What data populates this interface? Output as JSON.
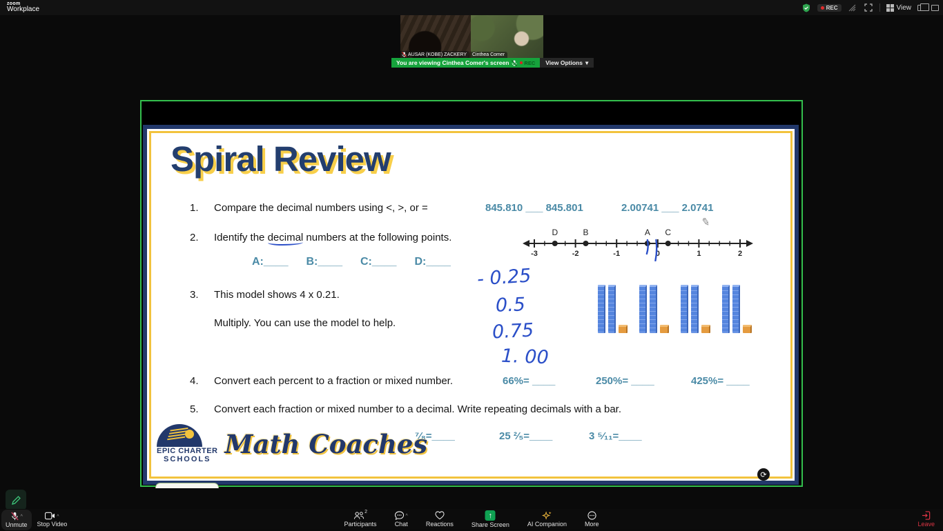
{
  "app": {
    "brand_top": "zoom",
    "brand_bottom": "Workplace",
    "rec_label": "REC",
    "view_label": "View"
  },
  "participants": [
    {
      "name": "AUSAR (KOBE) ZACKERY",
      "muted": true
    },
    {
      "name": "Cinthea Comer",
      "muted": false
    }
  ],
  "banner": {
    "viewing_text": "You are viewing  Cinthea Comer's screen",
    "rec_label": "REC",
    "view_options_label": "View Options"
  },
  "toolbar": {
    "unmute": "Unmute",
    "stop_video": "Stop Video",
    "participants": "Participants",
    "participants_count": "2",
    "chat": "Chat",
    "reactions": "Reactions",
    "share_screen": "Share Screen",
    "ai_companion": "AI Companion",
    "more": "More",
    "leave": "Leave"
  },
  "slide": {
    "title": "Spiral Review",
    "q1": {
      "num": "1.",
      "text": "Compare the decimal numbers using <, >, or =",
      "pair1": "845.810 ___ 845.801",
      "pair2": "2.00741 ___ 2.0741"
    },
    "q2": {
      "num": "2.",
      "text_before": "Identify the ",
      "text_underlined": "decimal",
      "text_after": " numbers at the following points.",
      "blanks": [
        "A:____",
        "B:____",
        "C:____",
        "D:____"
      ]
    },
    "q3": {
      "num": "3.",
      "line1": "This model shows 4 x 0.21.",
      "line2": "Multiply. You can use the model to help."
    },
    "q4": {
      "num": "4.",
      "text": "Convert each percent to a fraction or mixed number.",
      "items": [
        "66%= ____",
        "250%= ____",
        "425%= ____"
      ]
    },
    "q5": {
      "num": "5.",
      "text": "Convert each fraction or mixed number to a decimal. Write repeating decimals with a bar.",
      "items": [
        "⁷⁄₈=____",
        "25 ²⁄₅=____",
        "3 ⁵⁄₁₁=____"
      ]
    },
    "handwriting": [
      "- 0.25",
      "0.5",
      "0.75",
      "1. 00"
    ],
    "number_line": {
      "min": -3,
      "max": 2,
      "tick_step": 0.25,
      "label_step": 1,
      "points": [
        {
          "label": "D",
          "value": -2.5
        },
        {
          "label": "B",
          "value": -1.75
        },
        {
          "label": "A",
          "value": -0.25
        },
        {
          "label": "C",
          "value": 0.25
        }
      ],
      "pen_marks": [
        {
          "value": -0.25,
          "len": 20
        },
        {
          "value": -0.04,
          "len": 30
        }
      ]
    },
    "blocks": {
      "groups": 4,
      "rods_per_group": 2,
      "cubes_per_group": 1
    },
    "logo": {
      "line1": "EPIC CHARTER",
      "line2": "SCHOOLS",
      "script": "Math Coaches"
    }
  },
  "colors": {
    "zoom_green": "#16a33c",
    "share_border_green": "#34c04e",
    "slide_navy": "#22386b",
    "slide_gold": "#f2c33d",
    "worksheet_teal": "#4a8aa6",
    "pen_blue": "#2b4fc8",
    "rec_red": "#e02b2b",
    "leave_red": "#dc3545"
  }
}
